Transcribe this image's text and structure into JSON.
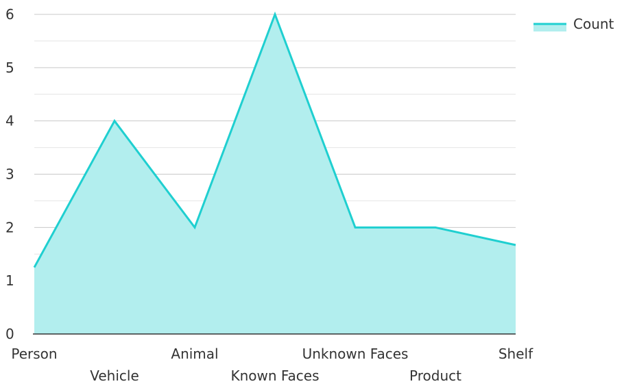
{
  "chart_data": {
    "type": "area",
    "categories": [
      "Person",
      "Vehicle",
      "Animal",
      "Known Faces",
      "Unknown Faces",
      "Product",
      "Shelf"
    ],
    "series": [
      {
        "name": "Count",
        "values": [
          1.25,
          4,
          2,
          6,
          2,
          2,
          1.67
        ]
      }
    ],
    "title": "",
    "xlabel": "",
    "ylabel": "",
    "ylim": [
      0,
      6
    ],
    "yticks": [
      0,
      1,
      2,
      3,
      4,
      5,
      6
    ],
    "grid": true,
    "legend_position": "top-right",
    "colors": {
      "line": "#1fcfd0",
      "fill": "#b2eeee",
      "grid": "#c8c8c8",
      "axis": "#333333",
      "text": "#333333"
    }
  }
}
